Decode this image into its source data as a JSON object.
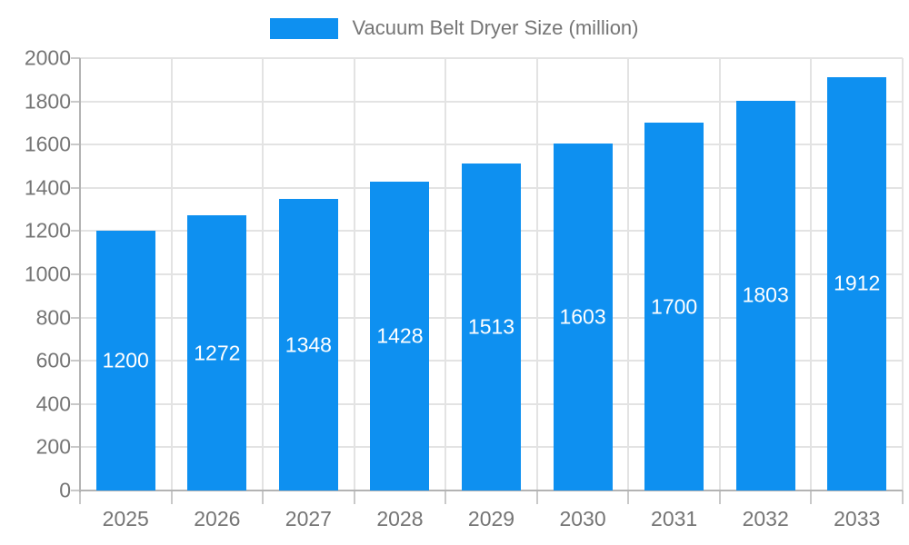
{
  "chart_data": {
    "type": "bar",
    "title": "Vacuum Belt Dryer Size (million)",
    "categories": [
      "2025",
      "2026",
      "2027",
      "2028",
      "2029",
      "2030",
      "2031",
      "2032",
      "2033"
    ],
    "values": [
      1200,
      1272,
      1348,
      1428,
      1513,
      1603,
      1700,
      1803,
      1912
    ],
    "xlabel": "",
    "ylabel": "",
    "ylim": [
      0,
      2000
    ],
    "ytick_step": 200,
    "grid": true,
    "legend_position": "top-center",
    "value_labels": "inside-center",
    "colors": {
      "bar": "#0E90F0",
      "axis_text": "#757575",
      "value_text": "#ffffff",
      "gridline": "#e3e3e3",
      "axis_line": "#b3b3b3"
    }
  }
}
